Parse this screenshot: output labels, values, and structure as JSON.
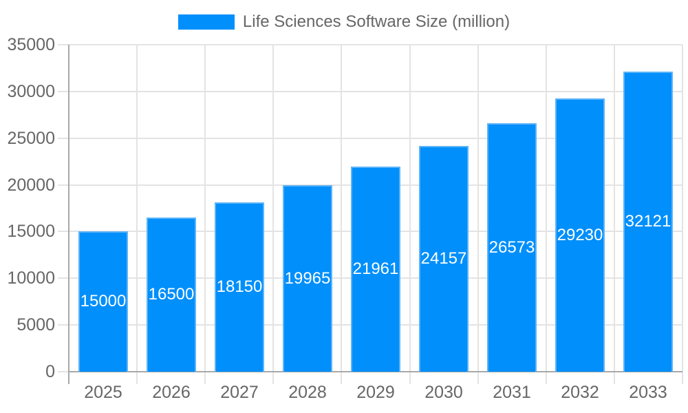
{
  "chart_data": {
    "type": "bar",
    "title": "Life Sciences Software Size (million)",
    "categories": [
      "2025",
      "2026",
      "2027",
      "2028",
      "2029",
      "2030",
      "2031",
      "2032",
      "2033"
    ],
    "series": [
      {
        "name": "Life Sciences Software Size (million)",
        "values": [
          15000,
          16500,
          18150,
          19965,
          21961,
          24157,
          26573,
          29230,
          32121
        ]
      }
    ],
    "xlabel": "",
    "ylabel": "",
    "ylim": [
      0,
      35000
    ],
    "yticks": [
      "0",
      "5000",
      "10000",
      "15000",
      "20000",
      "25000",
      "30000",
      "35000"
    ],
    "grid": true,
    "legend_position": "top",
    "data_labels_inside_bars": true
  },
  "colors": {
    "bar": "#008FFB",
    "data_label": "#ffffff",
    "axis_text": "#666666",
    "grid_line": "#e3e3e3",
    "axis_line": "#a8a8a8",
    "background": "#ffffff"
  }
}
